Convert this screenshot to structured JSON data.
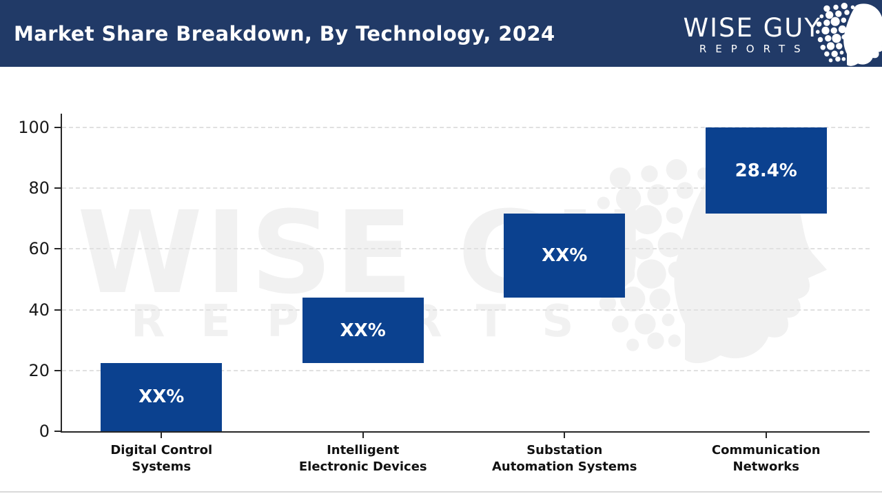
{
  "header": {
    "title": "Market Share Breakdown, By Technology, 2024",
    "bg_color": "#213a67",
    "logo": {
      "line1": "WISE GUY",
      "line2": "REPORTS"
    }
  },
  "watermark": {
    "line1": "WISE GU",
    "line2": "REPORTS"
  },
  "chart_data": {
    "type": "bar",
    "variant": "waterfall",
    "title": "Market Share Breakdown, By Technology, 2024",
    "categories": [
      "Digital Control\nSystems",
      "Intelligent\nElectronic Devices",
      "Substation\nAutomation Systems",
      "Communication\nNetworks"
    ],
    "segments": [
      {
        "category": "Digital Control Systems",
        "start": 0,
        "end": 22.5,
        "label": "XX%"
      },
      {
        "category": "Intelligent Electronic Devices",
        "start": 22.5,
        "end": 43.9,
        "label": "XX%"
      },
      {
        "category": "Substation Automation Systems",
        "start": 43.9,
        "end": 71.6,
        "label": "XX%"
      },
      {
        "category": "Communication Networks",
        "start": 71.6,
        "end": 100,
        "label": "28.4%"
      }
    ],
    "ylim": [
      0,
      104
    ],
    "yticks": [
      0,
      20,
      40,
      60,
      80,
      100
    ],
    "grid": {
      "horizontal": true,
      "style": "dashed"
    },
    "legend": null,
    "bar_color": "#0b418f",
    "bar_label_color": "#ffffff",
    "axis_color": "#262626",
    "grid_color": "#e0e0e0"
  }
}
